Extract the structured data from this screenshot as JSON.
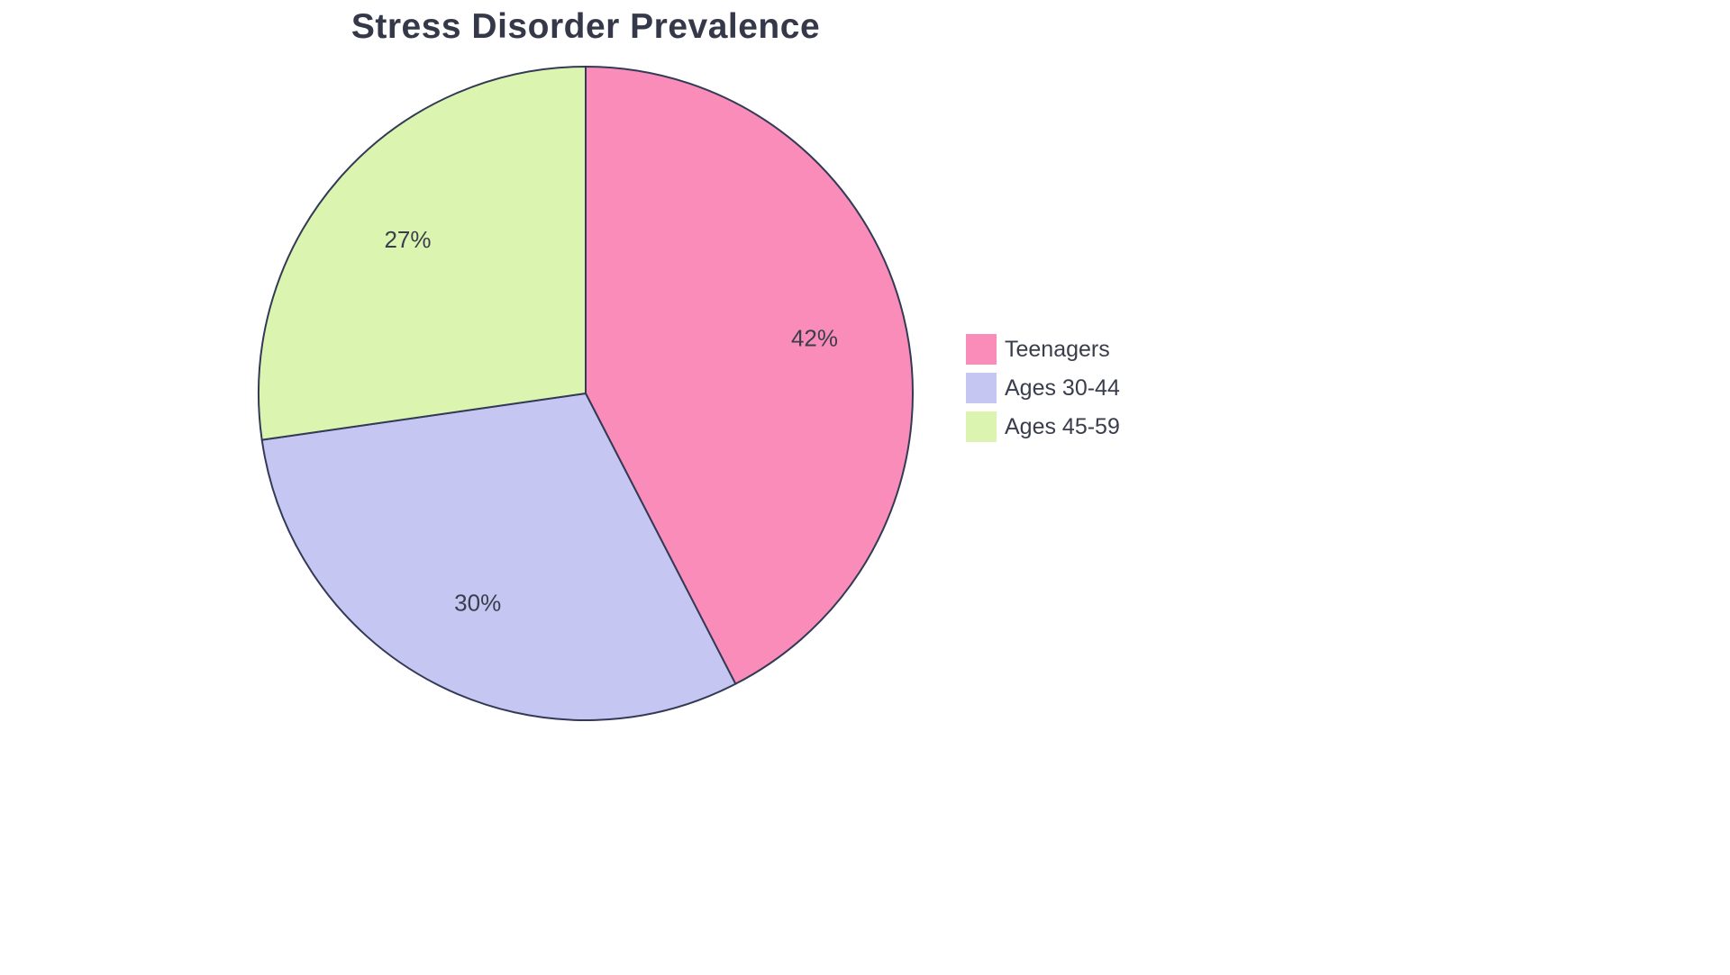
{
  "page": {
    "background": "#ffffff"
  },
  "chart_data": {
    "type": "pie",
    "title": "Stress Disorder Prevalence",
    "labels": [
      "Teenagers",
      "Ages 30-44",
      "Ages 45-59"
    ],
    "values": [
      42,
      30,
      27
    ],
    "value_labels": [
      "42%",
      "30%",
      "27%"
    ],
    "colors": [
      "#F98CB9",
      "#C5C6F2",
      "#DBF5B1"
    ],
    "stroke_color": "#333A56",
    "text_color": "#3A3D4C",
    "start_angle_deg": 0,
    "direction": "clockwise",
    "legend_position": "right",
    "legend": [
      {
        "label": "Teenagers",
        "color": "#F98CB9"
      },
      {
        "label": "Ages 30-44",
        "color": "#C5C6F2"
      },
      {
        "label": "Ages 45-59",
        "color": "#DBF5B1"
      }
    ]
  }
}
